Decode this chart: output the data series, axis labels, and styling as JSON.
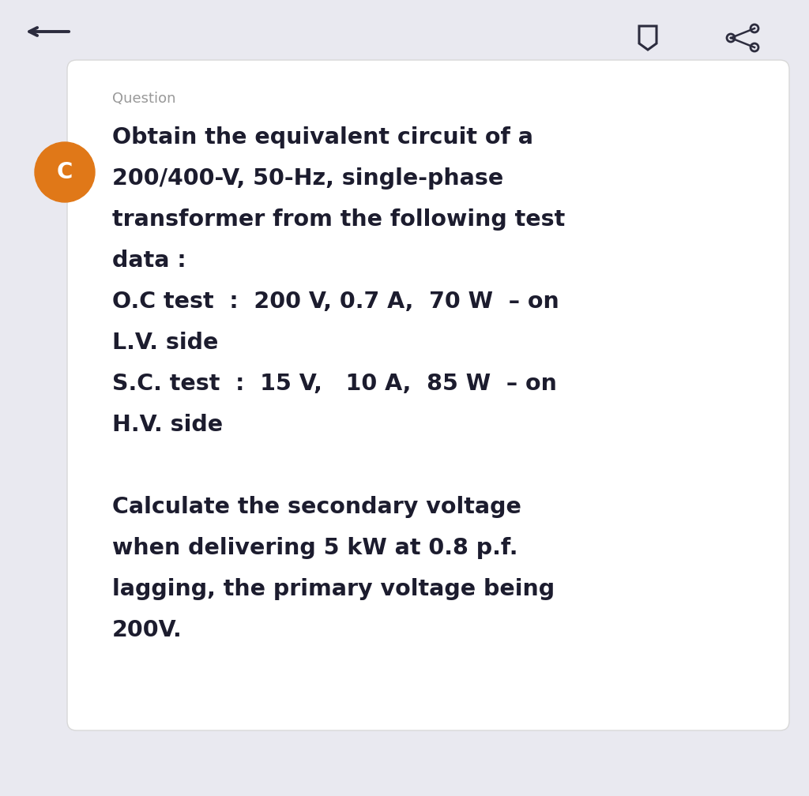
{
  "background_color": "#e9e9f0",
  "card_color": "#ffffff",
  "card_edge_color": "#d8d8d8",
  "badge_color": "#e07818",
  "badge_text": "C",
  "badge_text_color": "#ffffff",
  "question_label": "Question",
  "question_label_color": "#999999",
  "main_text_color": "#1c1c2e",
  "lines": [
    "Obtain the equivalent circuit of a",
    "200/400-V, 50-Hz, single-phase",
    "transformer from the following test",
    "data :",
    "O.C test  :  200 V, 0.7 A,  70 W  – on",
    "L.V. side",
    "S.C. test  :  15 V,   10 A,  85 W  – on",
    "H.V. side",
    "",
    "Calculate the secondary voltage",
    "when delivering 5 kW at 0.8 p.f.",
    "lagging, the primary voltage being",
    "200V."
  ],
  "main_font_size": 20.5,
  "question_label_font_size": 13,
  "badge_font_size": 20,
  "arrow_color": "#2c2c3e",
  "icon_color": "#2c2c3e"
}
